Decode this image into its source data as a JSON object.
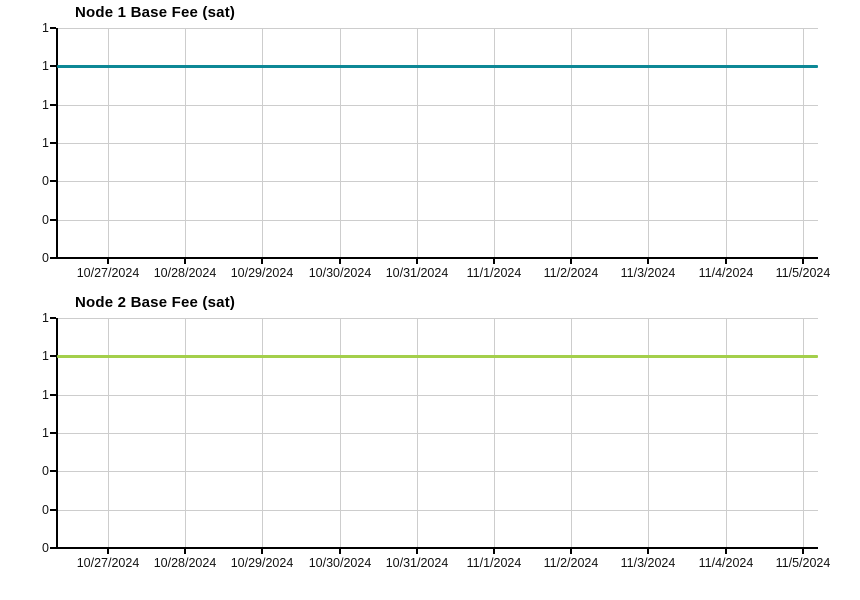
{
  "colors": {
    "background": "#ffffff",
    "axis": "#000000",
    "grid": "#cdcdcd",
    "tick": "#000000",
    "text": "#111111",
    "node1_line": "#0d8896",
    "node2_line": "#a3cf4b"
  },
  "chart_data": [
    {
      "type": "line",
      "title": "Node 1 Base Fee (sat)",
      "xlabel": "",
      "ylabel": "",
      "legend_position": "none",
      "grid": "on",
      "x_tick_labels": [
        "10/27/2024",
        "10/28/2024",
        "10/29/2024",
        "10/30/2024",
        "10/31/2024",
        "11/1/2024",
        "11/2/2024",
        "11/3/2024",
        "11/4/2024",
        "11/5/2024"
      ],
      "y_tick_labels": [
        "1",
        "1",
        "1",
        "1",
        "0",
        "0",
        "0"
      ],
      "y_tick_values": [
        1.2,
        1.0,
        0.8,
        0.6,
        0.4,
        0.2,
        0.0
      ],
      "ylim": [
        0,
        1.2
      ],
      "series": [
        {
          "name": "Node 1 Base Fee",
          "color": "#0d8896",
          "constant_value": 1,
          "x_range": [
            "10/27/2024",
            "11/5/2024"
          ],
          "values_description": "constant 1 sat across entire date range"
        }
      ]
    },
    {
      "type": "line",
      "title": "Node 2 Base Fee (sat)",
      "xlabel": "",
      "ylabel": "",
      "legend_position": "none",
      "grid": "on",
      "x_tick_labels": [
        "10/27/2024",
        "10/28/2024",
        "10/29/2024",
        "10/30/2024",
        "10/31/2024",
        "11/1/2024",
        "11/2/2024",
        "11/3/2024",
        "11/4/2024",
        "11/5/2024"
      ],
      "y_tick_labels": [
        "1",
        "1",
        "1",
        "1",
        "0",
        "0",
        "0"
      ],
      "y_tick_values": [
        1.2,
        1.0,
        0.8,
        0.6,
        0.4,
        0.2,
        0.0
      ],
      "ylim": [
        0,
        1.2
      ],
      "series": [
        {
          "name": "Node 2 Base Fee",
          "color": "#a3cf4b",
          "constant_value": 1,
          "x_range": [
            "10/27/2024",
            "11/5/2024"
          ],
          "values_description": "constant 1 sat across entire date range"
        }
      ]
    }
  ]
}
